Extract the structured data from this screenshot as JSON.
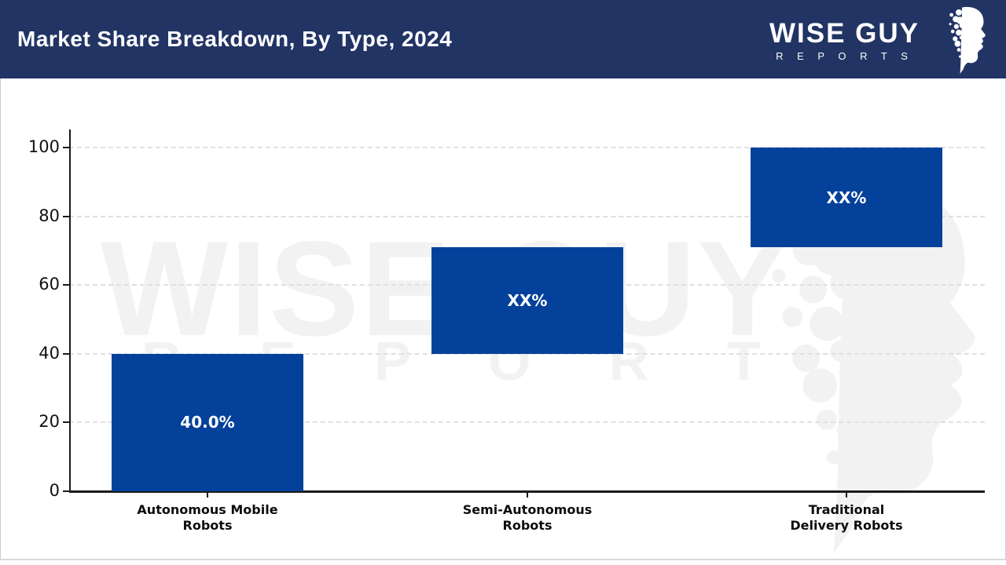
{
  "header": {
    "title": "Market Share Breakdown, By Type, 2024",
    "logo_line1": "WISE GUY",
    "logo_line2": "R E P O R T S"
  },
  "watermark": {
    "line1": "WISE GUY",
    "line2": "R E P O R T S"
  },
  "chart_data": {
    "type": "bar",
    "variant": "waterfall",
    "title": "Market Share Breakdown, By Type, 2024",
    "categories": [
      [
        "Autonomous Mobile",
        "Robots"
      ],
      [
        "Semi-Autonomous",
        "Robots"
      ],
      [
        "Traditional",
        "Delivery Robots"
      ]
    ],
    "segments": [
      {
        "category": "Autonomous Mobile Robots",
        "start": 0,
        "end": 40,
        "label": "40.0%"
      },
      {
        "category": "Semi-Autonomous Robots",
        "start": 40,
        "end": 71,
        "label": "XX%"
      },
      {
        "category": "Traditional Delivery Robots",
        "start": 71,
        "end": 100,
        "label": "XX%"
      }
    ],
    "yticks": [
      0,
      20,
      40,
      60,
      80,
      100
    ],
    "ylim": [
      0,
      105
    ],
    "xlabel": "",
    "ylabel": "",
    "legend": null,
    "grid": "horizontal-dashed"
  },
  "colors": {
    "header_bg": "#223464",
    "bar_fill": "#04419a",
    "bar_label": "#ffffff",
    "watermark": "#f2f2f3",
    "gridline": "#e0e0e0",
    "axis": "#1a1a1a",
    "page_bg": "#ffffff",
    "footer_line": "#d9d9d9"
  }
}
